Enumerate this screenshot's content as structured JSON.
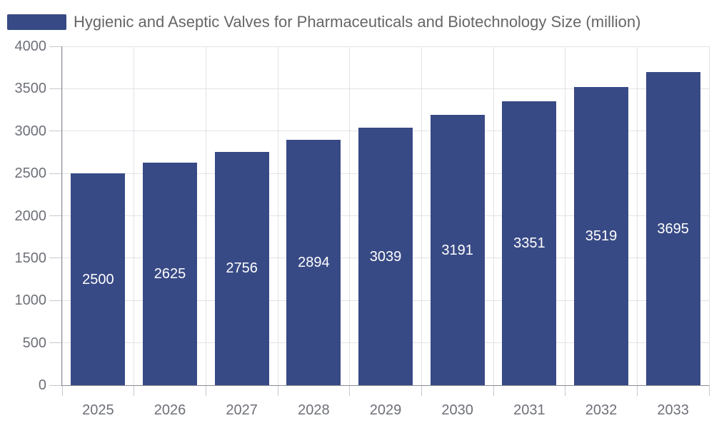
{
  "chart_data": {
    "type": "bar",
    "title": "Hygienic and Aseptic Valves for Pharmaceuticals and Biotechnology Size (million)",
    "legend_position": "top-left",
    "categories": [
      "2025",
      "2026",
      "2027",
      "2028",
      "2029",
      "2030",
      "2031",
      "2032",
      "2033"
    ],
    "series": [
      {
        "name": "Hygienic and Aseptic Valves for Pharmaceuticals and Biotechnology Size (million)",
        "values": [
          2500,
          2625,
          2756,
          2894,
          3039,
          3191,
          3351,
          3519,
          3695
        ]
      }
    ],
    "xlabel": "",
    "ylabel": "",
    "ylim": [
      0,
      4000
    ],
    "yticks": [
      0,
      500,
      1000,
      1500,
      2000,
      2500,
      3000,
      3500,
      4000
    ],
    "grid": true,
    "bar_label_position": "inside-center",
    "colors": {
      "bar": "#384A85",
      "bar_label": "#FFFFFF",
      "axis_text": "#6E7079",
      "title_text": "#666666",
      "grid_line": "#E2E3E8",
      "tick_line": "#C6C8CE",
      "axis_line": "#8A8D93",
      "background": "#FFFFFF"
    }
  }
}
